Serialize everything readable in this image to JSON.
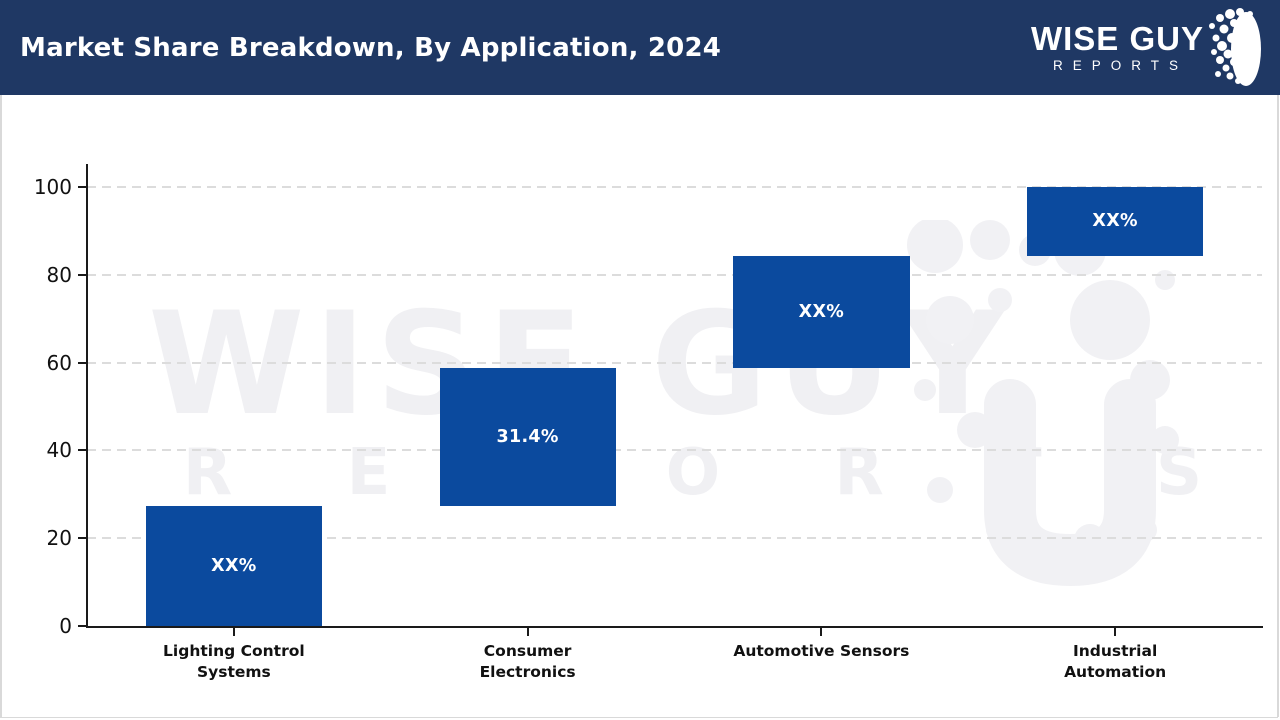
{
  "header": {
    "title": "Market Share Breakdown, By Application, 2024",
    "bg_color": "#1f3864",
    "logo": {
      "wordmark": "WISE GUY",
      "subtitle": "REPORTS",
      "icon": "dotted-head-profile-icon"
    }
  },
  "watermark": {
    "line1": "WISE GUY",
    "line2": "R E P O R T S"
  },
  "chart_data": {
    "type": "bar",
    "subtype": "floating-waterfall",
    "title": "Market Share Breakdown, By Application, 2024",
    "categories": [
      "Lighting Control Systems",
      "Consumer Electronics",
      "Automotive Sensors",
      "Industrial Automation"
    ],
    "bars": [
      {
        "category": "Lighting Control Systems",
        "label_lines": [
          "Lighting Control",
          "Systems"
        ],
        "start": 0,
        "end": 27.4,
        "value_label": "XX%"
      },
      {
        "category": "Consumer Electronics",
        "label_lines": [
          "Consumer",
          "Electronics"
        ],
        "start": 27.4,
        "end": 58.8,
        "value_label": "31.4%"
      },
      {
        "category": "Automotive Sensors",
        "label_lines": [
          "Automotive Sensors"
        ],
        "start": 58.8,
        "end": 84.3,
        "value_label": "XX%"
      },
      {
        "category": "Industrial Automation",
        "label_lines": [
          "Industrial",
          "Automation"
        ],
        "start": 84.3,
        "end": 100,
        "value_label": "XX%"
      }
    ],
    "xlabel": "",
    "ylabel": "",
    "ylim": [
      0,
      105
    ],
    "yticks": [
      0,
      20,
      40,
      60,
      80,
      100
    ],
    "grid": "horizontal-dashed",
    "legend": "none",
    "bar_color": "#0b4a9e",
    "value_label_color": "#ffffff",
    "axis_color": "#1a1a1a"
  }
}
